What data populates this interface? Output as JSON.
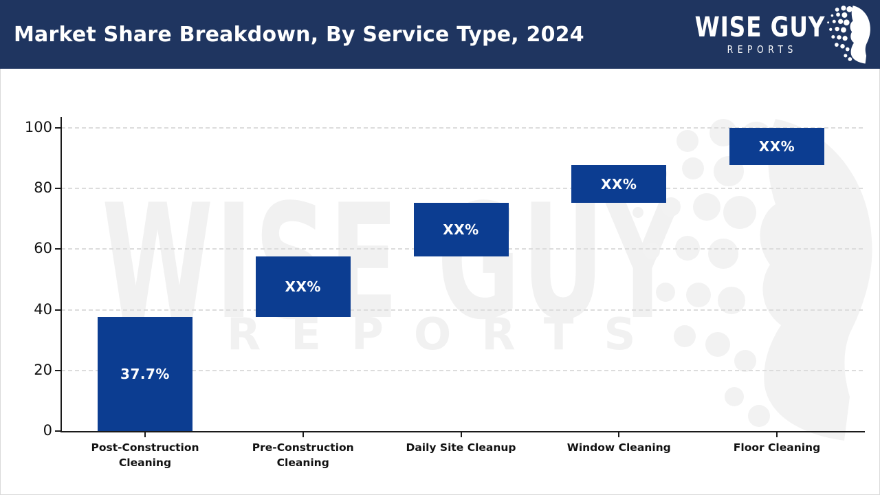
{
  "header": {
    "title": "Market Share Breakdown, By Service Type, 2024",
    "logo": {
      "line1": "WISE GUY",
      "line2": "REPORTS"
    }
  },
  "watermark": {
    "line1": "WISE GUY",
    "line2": "REPORTS"
  },
  "colors": {
    "header_bg": "#1f3560",
    "bar_fill": "#0c3d91",
    "bar_label_text": "#ffffff",
    "axis": "#1a1a1a",
    "gridline": "#dcdcdc",
    "tick_label_text": "#111111",
    "watermark": "#f1f1f1"
  },
  "chart_data": {
    "type": "bar",
    "subtype": "waterfall",
    "title": "Market Share Breakdown, By Service Type, 2024",
    "categories": [
      "Post-Construction Cleaning",
      "Pre-Construction Cleaning",
      "Daily Site Cleanup",
      "Window Cleaning",
      "Floor Cleaning"
    ],
    "segments": [
      {
        "category": "Post-Construction Cleaning",
        "start": 0,
        "end": 37.7,
        "label": "37.7%"
      },
      {
        "category": "Pre-Construction Cleaning",
        "start": 37.7,
        "end": 57.5,
        "label": "XX%"
      },
      {
        "category": "Daily Site Cleanup",
        "start": 57.5,
        "end": 75.2,
        "label": "XX%"
      },
      {
        "category": "Window Cleaning",
        "start": 75.2,
        "end": 87.7,
        "label": "XX%"
      },
      {
        "category": "Floor Cleaning",
        "start": 87.7,
        "end": 100,
        "label": "XX%"
      }
    ],
    "yticks": [
      0,
      20,
      40,
      60,
      80,
      100
    ],
    "ylim": [
      0,
      104
    ],
    "xlabel": "",
    "ylabel": "",
    "grid": "horizontal-dashed",
    "legend": "none"
  }
}
